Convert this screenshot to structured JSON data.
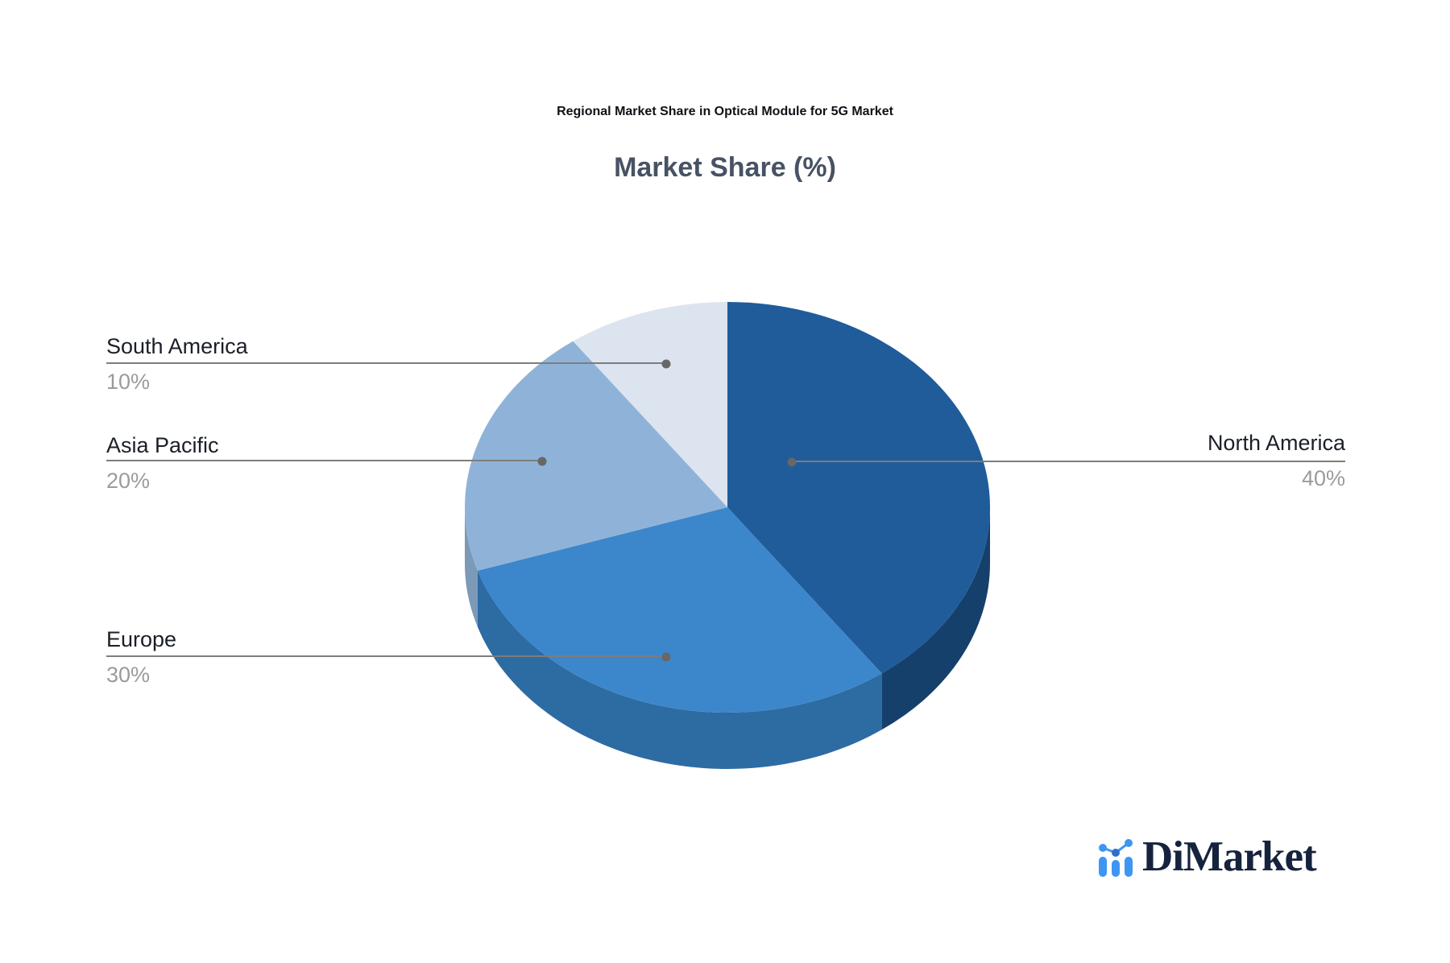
{
  "header": {
    "title": "Regional Market Share in Optical Module for 5G Market",
    "subtitle": "Market Share (%)"
  },
  "chart_data": {
    "type": "pie",
    "title": "Regional Market Share in Optical Module for 5G Market",
    "subtitle": "Market Share (%)",
    "unit": "%",
    "style_3d": "depth-extruded-ellipse",
    "start_angle": "12-o-clock",
    "direction": "clockwise",
    "legend_position": "callout-labels",
    "series": [
      {
        "label": "North America",
        "value": 40,
        "display": "40%",
        "color": "#1f5c99",
        "side_color": "#15406b"
      },
      {
        "label": "Europe",
        "value": 30,
        "display": "30%",
        "color": "#3c86cb",
        "side_color": "#2d6ba3"
      },
      {
        "label": "Asia Pacific",
        "value": 20,
        "display": "20%",
        "color": "#8fb3d8",
        "side_color": "#7c99b8"
      },
      {
        "label": "South America",
        "value": 10,
        "display": "10%",
        "color": "#dce4ef",
        "side_color": "#b9c4d4"
      }
    ]
  },
  "style": {
    "background": "#ffffff",
    "title_color": "#0e1116",
    "subtitle_color": "#475264",
    "label_color": "#1b1f27",
    "value_color": "#9b9b9b",
    "leader_line": "#7d7d7d",
    "leader_dot": "#676767"
  },
  "logo": {
    "brand": "DiMarket",
    "icon": "bar-chart-trend-icon",
    "navy": "#16233e",
    "blue": "#3e96f3",
    "blue_dark": "#2f6fc7"
  }
}
